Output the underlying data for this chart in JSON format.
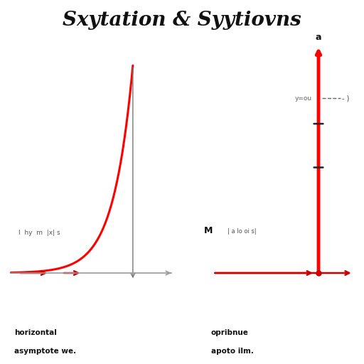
{
  "title": "Sxytation & Syytiovns",
  "title_fontsize": 20,
  "title_fontweight": "bold",
  "background_color": "#ffffff",
  "fig_width": 5.12,
  "fig_height": 5.12,
  "left_panel": {
    "curve_color": "#ff0000",
    "curve_linewidth": 2.2,
    "axis_color": "#999999",
    "arrow_color": "#cc0000",
    "label_bottom_left": "horizontal",
    "label_bottom_left2": "asymptote we.",
    "annotation_text1": "l  hy  m  |x| s",
    "vertical_line_color": "#888888",
    "vertical_line_lw": 1.0
  },
  "right_panel": {
    "line_color": "#ff0000",
    "line_linewidth": 3.0,
    "arrow_color": "#cc0000",
    "label_top": "a",
    "label_mid_left": "y=ou",
    "label_mid_right": "- )",
    "label_bottom_left": "M",
    "label_bottom_right": "| a lo oi s|",
    "label_foot_left": "opribnue",
    "label_foot_right": "apoto ilm."
  }
}
